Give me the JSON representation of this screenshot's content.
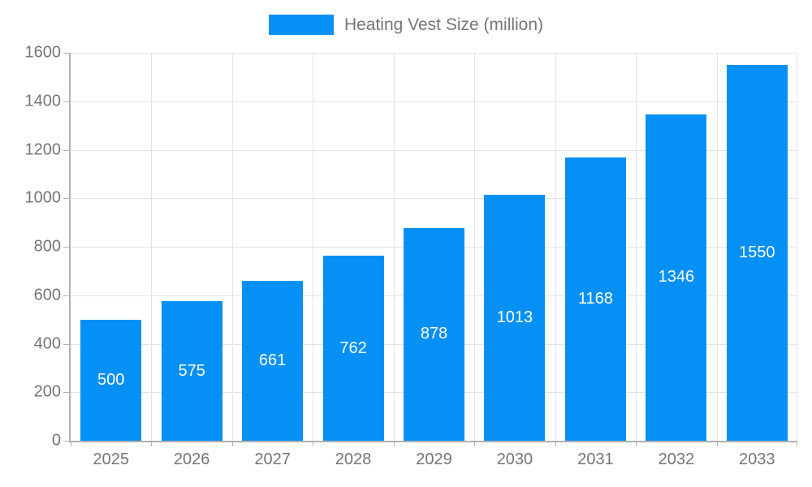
{
  "chart_data": {
    "type": "bar",
    "title": "Heating Vest Size (million)",
    "series_name": "Heating Vest Size (million)",
    "categories": [
      "2025",
      "2026",
      "2027",
      "2028",
      "2029",
      "2030",
      "2031",
      "2032",
      "2033"
    ],
    "values": [
      500,
      575,
      661,
      762,
      878,
      1013,
      1168,
      1346,
      1550
    ],
    "xlabel": "",
    "ylabel": "",
    "ylim": [
      0,
      1600
    ],
    "yticks": [
      0,
      200,
      400,
      600,
      800,
      1000,
      1200,
      1400,
      1600
    ],
    "grid": true,
    "legend_position": "top",
    "value_labels": "inside-center",
    "colors": {
      "bar": "#0590f5",
      "bar_label": "#ffffff",
      "axis_text": "#757575",
      "grid_line": "#e3e3e3",
      "axis_line": "#b0b0b0"
    }
  },
  "legend": {
    "label": "Heating Vest Size (million)"
  }
}
